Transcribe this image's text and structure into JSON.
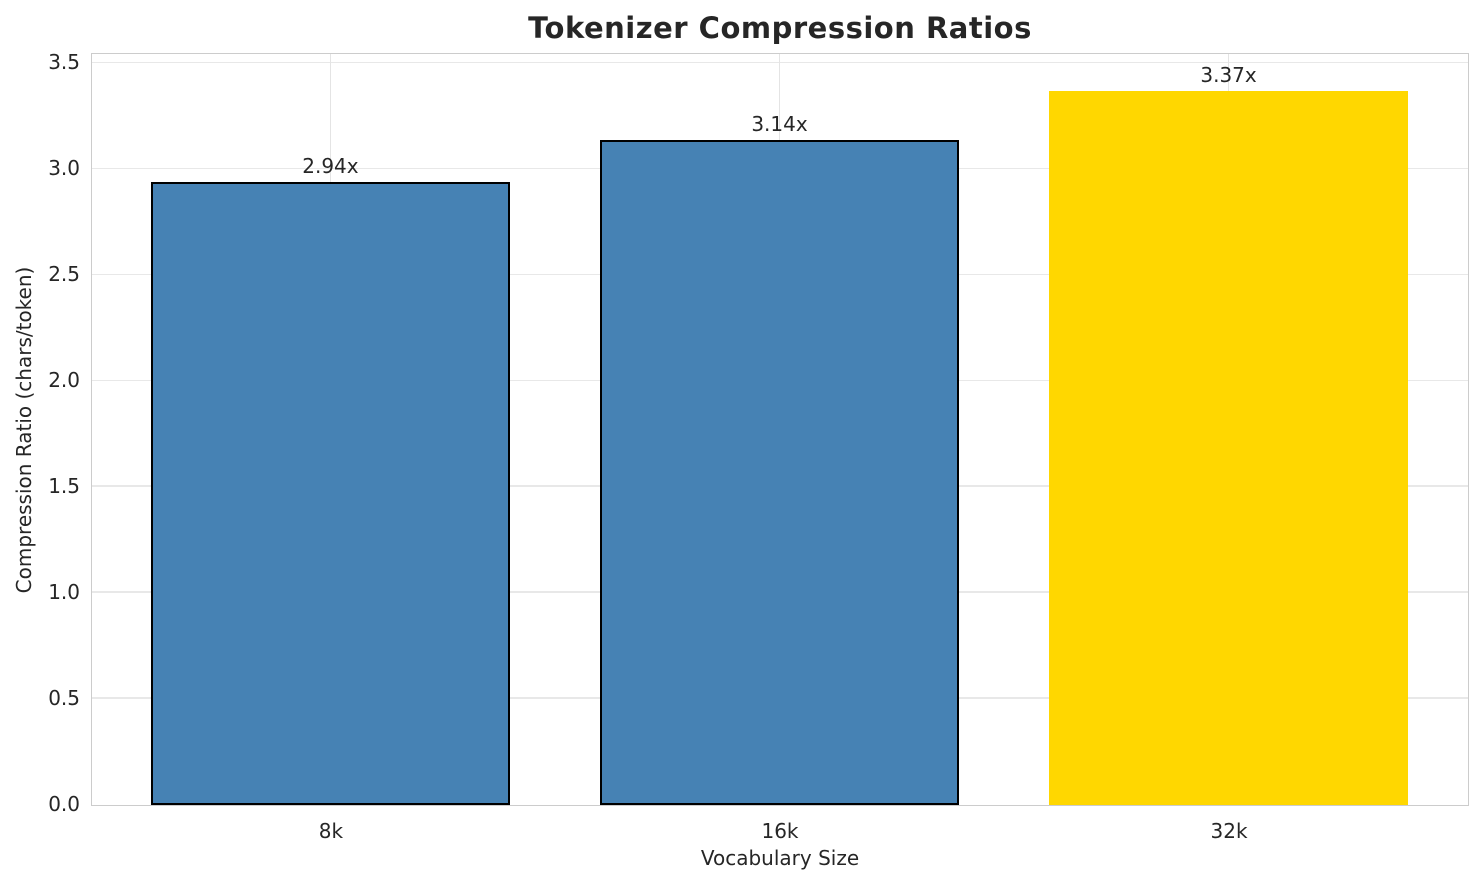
{
  "chart_data": {
    "type": "bar",
    "title": "Tokenizer Compression Ratios",
    "xlabel": "Vocabulary Size",
    "ylabel": "Compression Ratio (chars/token)",
    "categories": [
      "8k",
      "16k",
      "32k"
    ],
    "values": [
      2.94,
      3.14,
      3.37
    ],
    "bar_labels": [
      "2.94x",
      "3.14x",
      "3.37x"
    ],
    "bar_colors": [
      "#4682b4",
      "#4682b4",
      "#ffd700"
    ],
    "bar_edge_colors": [
      "#000000",
      "#000000",
      "none"
    ],
    "ylim": [
      0,
      3.54
    ],
    "ytick_values": [
      0,
      0.5,
      1,
      1.5,
      2,
      2.5,
      3,
      3.5
    ],
    "ytick_labels": [
      "0.0",
      "0.5",
      "1.0",
      "1.5",
      "2.0",
      "2.5",
      "3.0",
      "3.5"
    ],
    "grid": true,
    "grid_axes": "both",
    "legend_position": "none",
    "colors": {
      "text": "#262626",
      "spine": "#cccccc",
      "grid": "#e8e8e8",
      "background": "#ffffff",
      "bar_blue": "#4682b4",
      "bar_gold": "#ffd700",
      "bar_edge": "#000000"
    }
  }
}
